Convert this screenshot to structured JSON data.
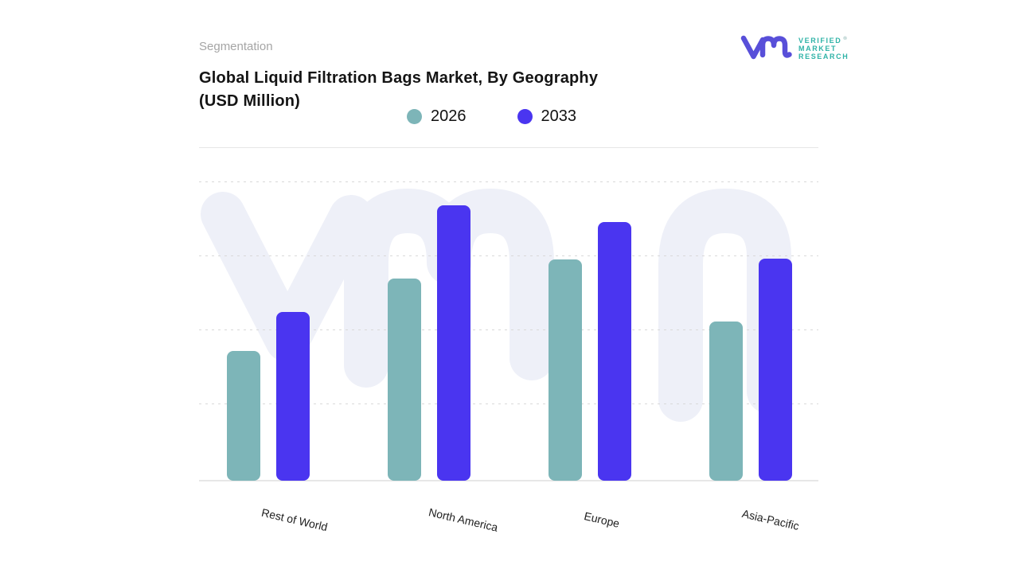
{
  "header": {
    "eyebrow": "Segmentation",
    "title_line1": "Global Liquid Filtration Bags Market, By Geography",
    "title_line2": "(USD Million)"
  },
  "logo": {
    "brand_line1": "VERIFIED",
    "brand_line2": "MARKET",
    "brand_line3": "RESEARCH",
    "registered_mark": "®",
    "mark_color": "#584fd9",
    "text_color": "#2fb3a7"
  },
  "legend": [
    {
      "label": "2026",
      "color": "#7db5b8"
    },
    {
      "label": "2033",
      "color": "#4a35f0"
    }
  ],
  "chart_data": {
    "type": "bar",
    "title": "Global Liquid Filtration Bags Market, By Geography (USD Million)",
    "xlabel": "",
    "ylabel": "",
    "categories": [
      "Rest of World",
      "North America",
      "Europe",
      "Asia-Pacific"
    ],
    "series": [
      {
        "name": "2026",
        "color": "#7db5b8",
        "values": [
          43.4,
          67.6,
          73.9,
          53.2
        ]
      },
      {
        "name": "2033",
        "color": "#4a35f0",
        "values": [
          56.4,
          92.0,
          86.4,
          74.2
        ]
      }
    ],
    "ylim": [
      0,
      100
    ],
    "y_axis_labels_visible": false,
    "value_note": "no numeric axis shown; values are relative bar heights in % of plot height",
    "grid": "horizontal-dotted",
    "legend_position": "top",
    "watermark_color": "#eef0f8"
  }
}
